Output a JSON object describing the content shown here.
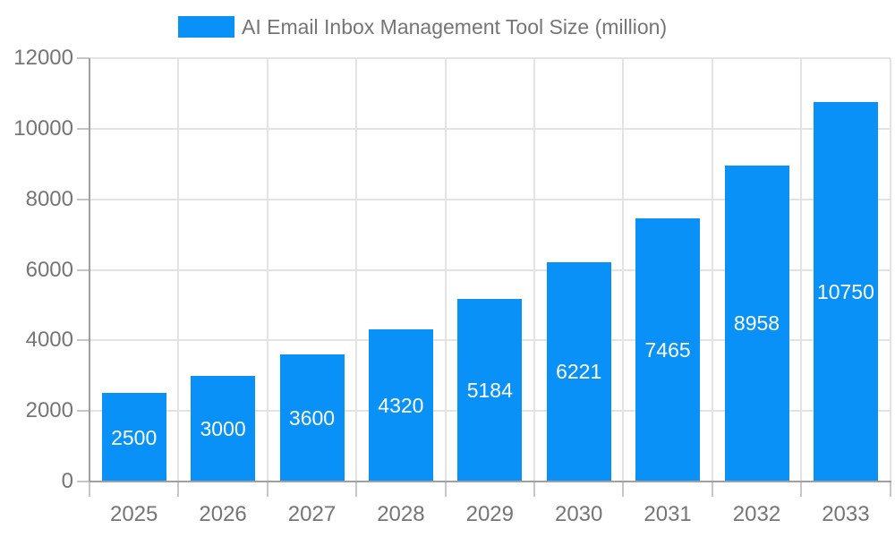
{
  "legend": {
    "label": "AI Email Inbox Management Tool Size (million)",
    "swatch_color": "#0A91F7"
  },
  "colors": {
    "bar": "#0A91F7",
    "grid": "#E3E3E3",
    "axis_line": "#A0A0A0",
    "tick_mark": "#C6C6C6",
    "axis_text": "#757575",
    "value_text": "#FFFFFF",
    "background": "#FFFFFF"
  },
  "chart_data": {
    "type": "bar",
    "title": "",
    "series_name": "AI Email Inbox Management Tool Size (million)",
    "categories": [
      "2025",
      "2026",
      "2027",
      "2028",
      "2029",
      "2030",
      "2031",
      "2032",
      "2033"
    ],
    "values": [
      2500,
      3000,
      3600,
      4320,
      5184,
      6221,
      7465,
      8958,
      10750
    ],
    "xlabel": "",
    "ylabel": "",
    "ylim": [
      0,
      12000
    ],
    "ytick_step": 2000,
    "ytick_labels": [
      "0",
      "2000",
      "4000",
      "6000",
      "8000",
      "10000",
      "12000"
    ],
    "grid": true,
    "legend_position": "top-center",
    "value_label_position": "inside-center"
  }
}
